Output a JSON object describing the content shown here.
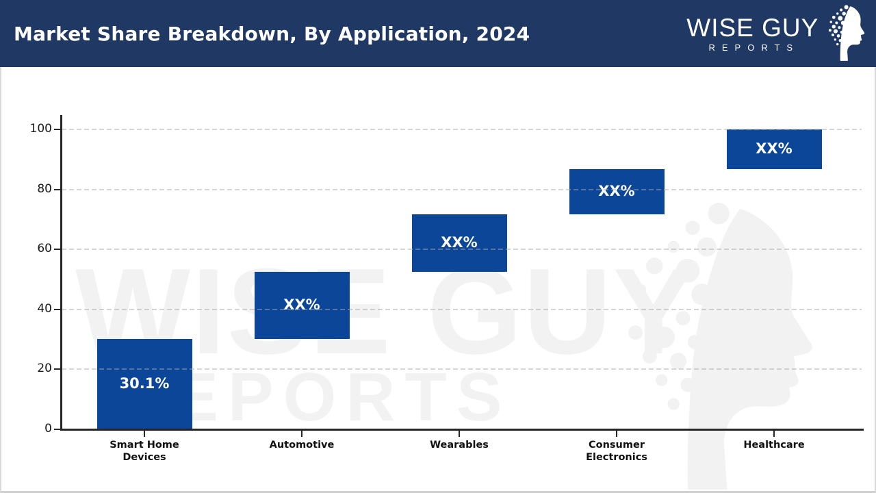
{
  "header": {
    "title": "Market Share Breakdown, By Application, 2024",
    "bg_color": "#1f3864",
    "logo": {
      "wordmark": "WISE GUY",
      "sub": "REPORTS"
    }
  },
  "watermark": {
    "wordmark": "WISE GUY",
    "sub": "REPORTS"
  },
  "chart_data": {
    "type": "bar",
    "subtype": "waterfall",
    "title": "Market Share Breakdown, By Application, 2024",
    "categories": [
      "Smart Home Devices",
      "Automotive",
      "Wearables",
      "Consumer Electronics",
      "Healthcare"
    ],
    "segments": [
      {
        "category": "Smart Home Devices",
        "start": 0,
        "end": 30.1,
        "label": "30.1%"
      },
      {
        "category": "Automotive",
        "start": 30.1,
        "end": 52.6,
        "label": "XX%"
      },
      {
        "category": "Wearables",
        "start": 52.6,
        "end": 71.6,
        "label": "XX%"
      },
      {
        "category": "Consumer Electronics",
        "start": 71.6,
        "end": 86.7,
        "label": "XX%"
      },
      {
        "category": "Healthcare",
        "start": 86.7,
        "end": 100,
        "label": "XX%"
      }
    ],
    "ylim": [
      0,
      100
    ],
    "yticks": [
      "0",
      "20",
      "40",
      "60",
      "80",
      "100"
    ],
    "grid": true,
    "grid_style": "dashed",
    "legend_position": "none",
    "bar_color": "#0b4699",
    "bar_label_color": "#ffffff",
    "axis_color": "#262626"
  }
}
